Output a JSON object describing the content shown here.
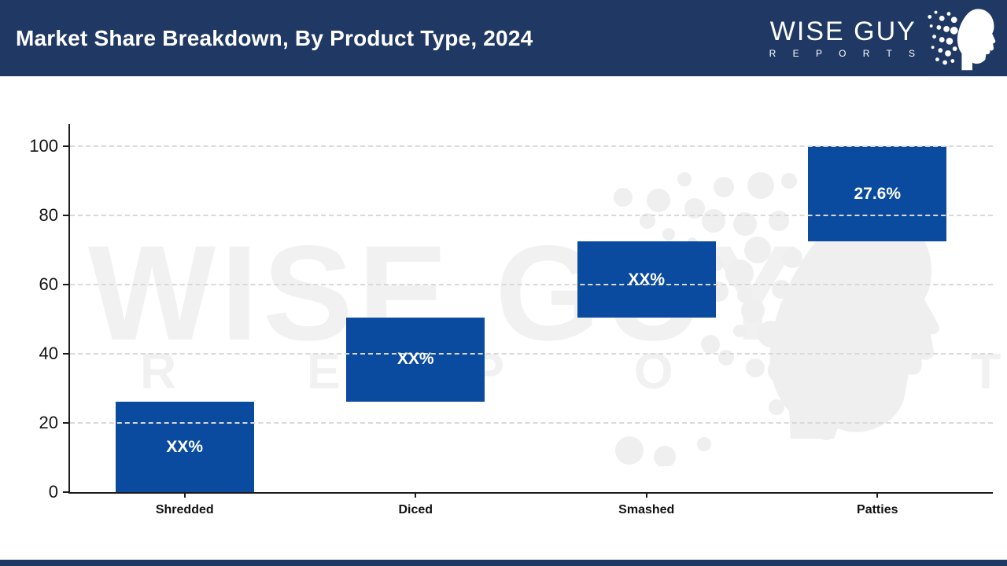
{
  "header": {
    "title": "Market Share Breakdown, By Product Type, 2024",
    "logo": {
      "line1": "WISE GUY",
      "line2": "R E P O R T S"
    }
  },
  "watermark": {
    "line1": "WISE GUY",
    "line2": "R E P O R T S"
  },
  "colors": {
    "header_bg": "#203864",
    "footer_bg": "#203864",
    "bar": "#0a4a9f",
    "grid": "#d9d9d9",
    "axis": "#1c1c1c",
    "watermark": "#f1f1f2",
    "bar_label": "#ffffff"
  },
  "chart_data": {
    "type": "bar",
    "subtype": "floating-waterfall",
    "title": "Market Share Breakdown, By Product Type, 2024",
    "categories": [
      "Shredded",
      "Diced",
      "Smashed",
      "Patties"
    ],
    "bars": [
      {
        "category": "Shredded",
        "start": 0,
        "end": 26.1,
        "label": "XX%"
      },
      {
        "category": "Diced",
        "start": 26.1,
        "end": 50.5,
        "label": "XX%"
      },
      {
        "category": "Smashed",
        "start": 50.5,
        "end": 72.4,
        "label": "XX%"
      },
      {
        "category": "Patties",
        "start": 72.4,
        "end": 100,
        "label": "27.6%"
      }
    ],
    "yticks": [
      0,
      20,
      40,
      60,
      80,
      100
    ],
    "ylim": [
      0,
      100
    ],
    "xlabel": "",
    "ylabel": "",
    "grid": "horizontal-dashed",
    "legend": "none"
  }
}
